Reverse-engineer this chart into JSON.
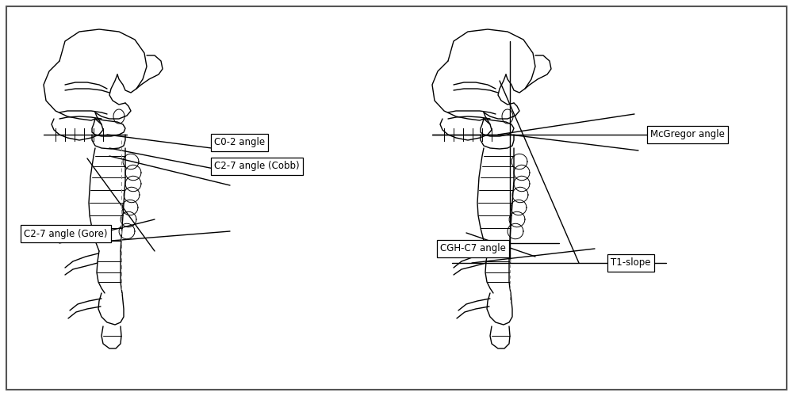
{
  "background_color": "#ffffff",
  "border_color": "#555555",
  "line_color": "#000000",
  "fig_width": 10.0,
  "fig_height": 5.0,
  "labels": {
    "c02": "C0-2 angle",
    "c27cobb": "C2-7 angle (Cobb)",
    "c27gore": "C2-7 angle (Gore)",
    "mcgregor": "McGregor angle",
    "cgh": "CGH-C7 angle",
    "t1slope": "T1-slope"
  }
}
